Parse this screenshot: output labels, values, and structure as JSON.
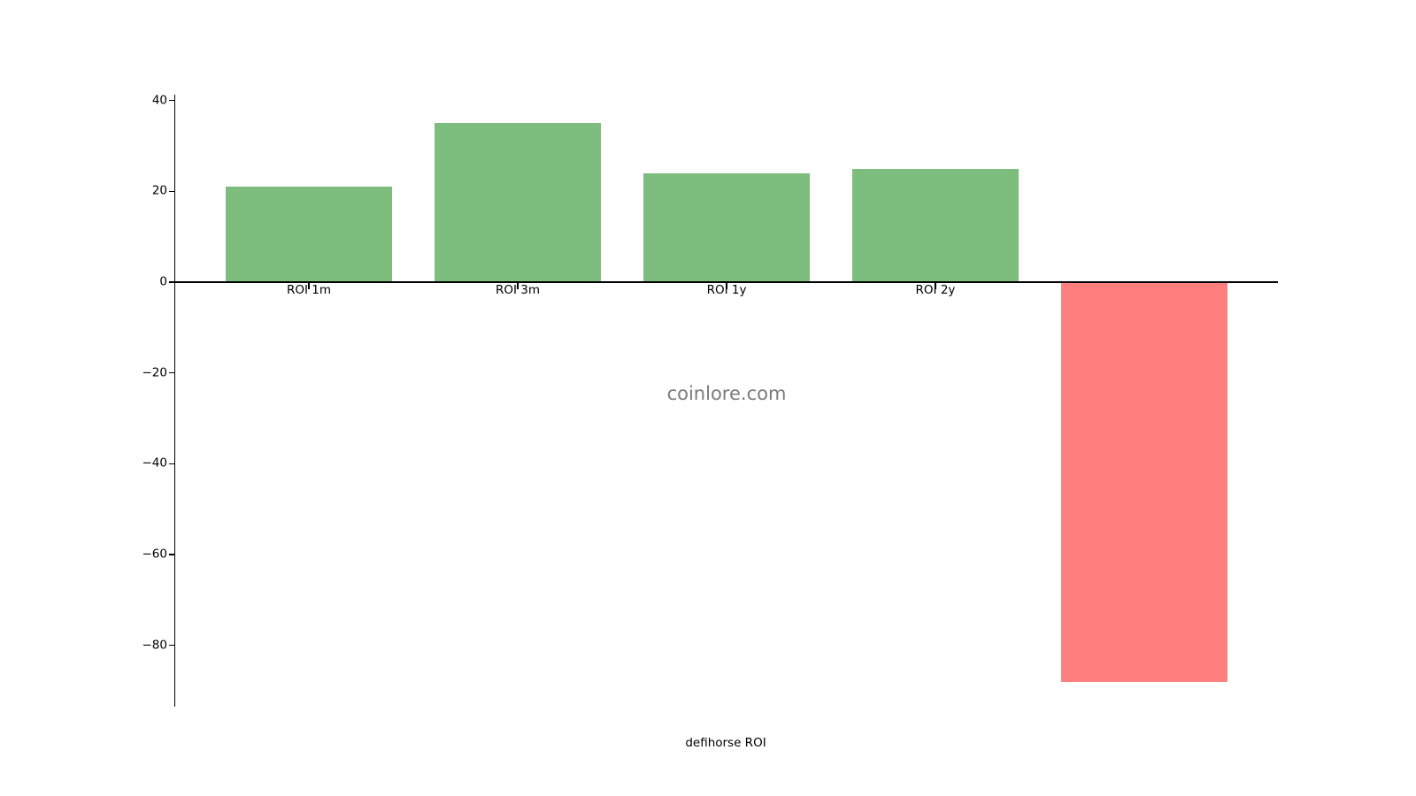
{
  "chart_data": {
    "type": "bar",
    "xlabel": "defihorse ROI",
    "watermark": "coinlore.com",
    "categories": [
      "ROI 1m",
      "ROI 3m",
      "ROI 1y",
      "ROI 2y",
      ""
    ],
    "values": [
      21,
      35,
      24,
      25,
      -88
    ],
    "yticks": [
      40,
      20,
      0,
      -20,
      -40,
      -60,
      -80
    ],
    "ytick_labels": [
      "40",
      "20",
      "0",
      "−20",
      "−40",
      "−60",
      "−80"
    ],
    "ylim": [
      -93.5,
      41.3
    ],
    "grid": false,
    "legend_position": "none",
    "colors": {
      "positive_bar": "#7dbe7f",
      "negative_bar": "#ff7f7f",
      "axis": "#000000",
      "tick_text": "#000000",
      "watermark": "#7b7b7b",
      "background": "#ffffff"
    }
  }
}
